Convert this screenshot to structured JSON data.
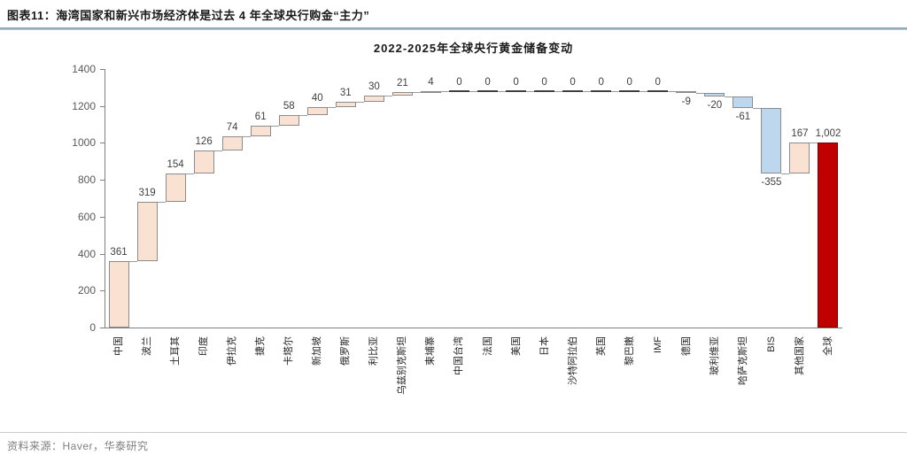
{
  "figure": {
    "label": "图表11：",
    "title": "海湾国家和新兴市场经济体是过去 4 年全球央行购金“主力”",
    "source": "资料来源：Haver，华泰研究"
  },
  "chart_data": {
    "type": "bar",
    "subtype": "waterfall",
    "title": "2022-2025年全球央行黄金储备变动",
    "categories": [
      "中国",
      "波兰",
      "土耳其",
      "印度",
      "伊拉克",
      "捷克",
      "卡塔尔",
      "新加坡",
      "俄罗斯",
      "利比亚",
      "乌兹别克斯坦",
      "柬埔寨",
      "中国台湾",
      "法国",
      "美国",
      "日本",
      "沙特阿拉伯",
      "英国",
      "黎巴嫩",
      "IMF",
      "德国",
      "玻利维亚",
      "哈萨克斯坦",
      "BIS",
      "其他国家",
      "全球"
    ],
    "values": [
      361,
      319,
      154,
      126,
      74,
      61,
      58,
      40,
      31,
      30,
      21,
      4,
      0,
      0,
      0,
      0,
      0,
      0,
      0,
      0,
      -9,
      -20,
      -61,
      -355,
      167,
      1002
    ],
    "value_labels": [
      "361",
      "319",
      "154",
      "126",
      "74",
      "61",
      "58",
      "40",
      "31",
      "30",
      "21",
      "4",
      "0",
      "0",
      "0",
      "0",
      "0",
      "0",
      "0",
      "0",
      "-9",
      "-20",
      "-61",
      "-355",
      "167",
      "1,002"
    ],
    "total_index": 25,
    "xlabel": "",
    "ylabel": "",
    "ylim": [
      0,
      1400
    ],
    "yticks": [
      0,
      200,
      400,
      600,
      800,
      1000,
      1200,
      1400
    ],
    "grid": false,
    "legend": "none",
    "colors": {
      "increase": "#f9e2d1",
      "decrease": "#bdd7ee",
      "total": "#c00000",
      "bar_border": "#8c8c8c",
      "connector": "#9b9b9b",
      "zero_dash": "#404040",
      "axis": "#808080",
      "tick_label": "#595959",
      "value_label": "#404040",
      "category_label": "#262626",
      "header_rule": "#8fa9bd"
    }
  }
}
